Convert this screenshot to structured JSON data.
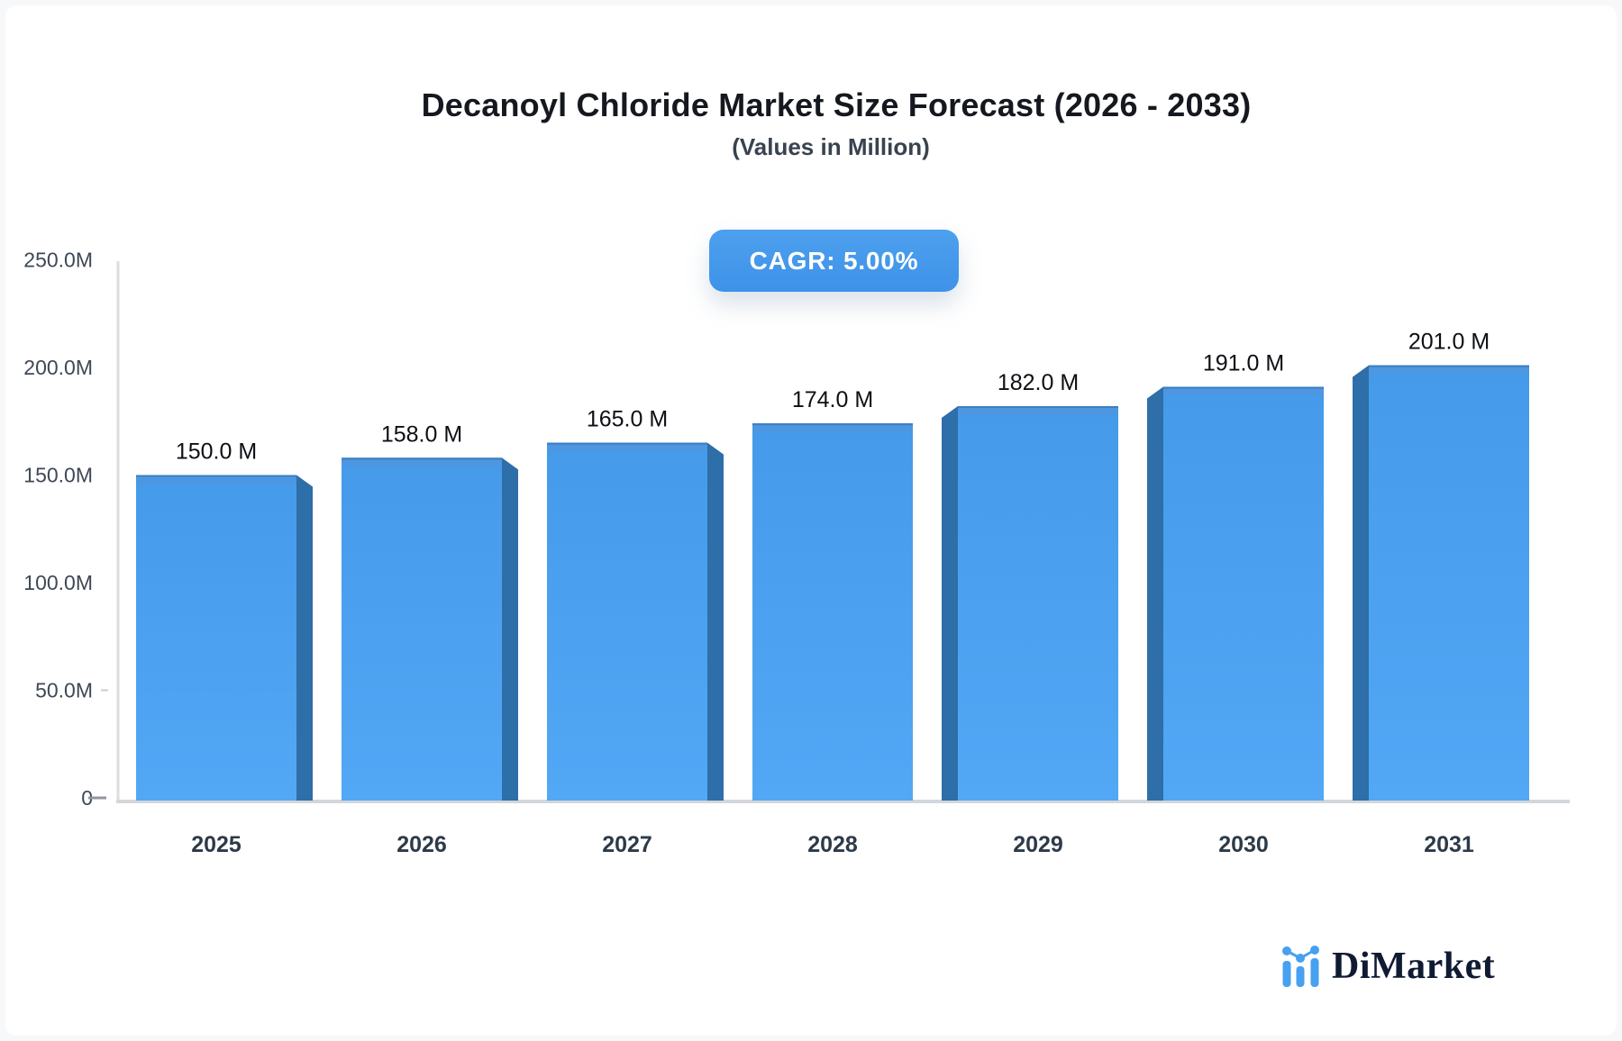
{
  "page": {
    "background": "#f7f8f9",
    "card_background": "#ffffff"
  },
  "header": {
    "title": "Decanoyl Chloride Market Size Forecast (2026 - 2033)",
    "subtitle": "(Values in Million)"
  },
  "badge": {
    "label": "CAGR: 5.00%",
    "background": "#4497ea",
    "text_color": "#ffffff"
  },
  "chart_data": {
    "type": "bar",
    "title": "Decanoyl Chloride Market Size Forecast (2026 - 2033)",
    "subtitle": "(Values in Million)",
    "unit": "Million",
    "categories": [
      "2025",
      "2026",
      "2027",
      "2028",
      "2029",
      "2030",
      "2031"
    ],
    "values": [
      150,
      158,
      165,
      174,
      182,
      191,
      201
    ],
    "value_labels": [
      "150.0 M",
      "158.0 M",
      "165.0 M",
      "174.0 M",
      "182.0 M",
      "191.0 M",
      "201.0 M"
    ],
    "ylim": [
      0,
      250
    ],
    "y_ticks": [
      {
        "value": 250,
        "label": "250.0M",
        "tick": "none"
      },
      {
        "value": 200,
        "label": "200.0M",
        "tick": "none"
      },
      {
        "value": 150,
        "label": "150.0M",
        "tick": "none"
      },
      {
        "value": 100,
        "label": "100.0M",
        "tick": "none"
      },
      {
        "value": 50,
        "label": "50.0M",
        "tick": "short"
      },
      {
        "value": 0,
        "label": "0",
        "tick": "long"
      }
    ],
    "grid": false,
    "legend": "none",
    "colors": {
      "bar_body_top": "#459aea",
      "bar_body_bottom": "#52a8f5",
      "bar_top_face": "#4e96e0",
      "bar_top_edge": "#3a7fc2",
      "bar_side_face": "#2e6ea9",
      "axis_line": "#dbdee2",
      "baseline": "#d3d6da",
      "tick_text": "#3e4856",
      "value_text": "#0c0f14",
      "category_text": "#2d3a48"
    }
  },
  "logo": {
    "text": "DiMarket",
    "icon": "mini-bar-chart-icon",
    "icon_color": "#47a0f0",
    "text_color": "#101b33"
  }
}
